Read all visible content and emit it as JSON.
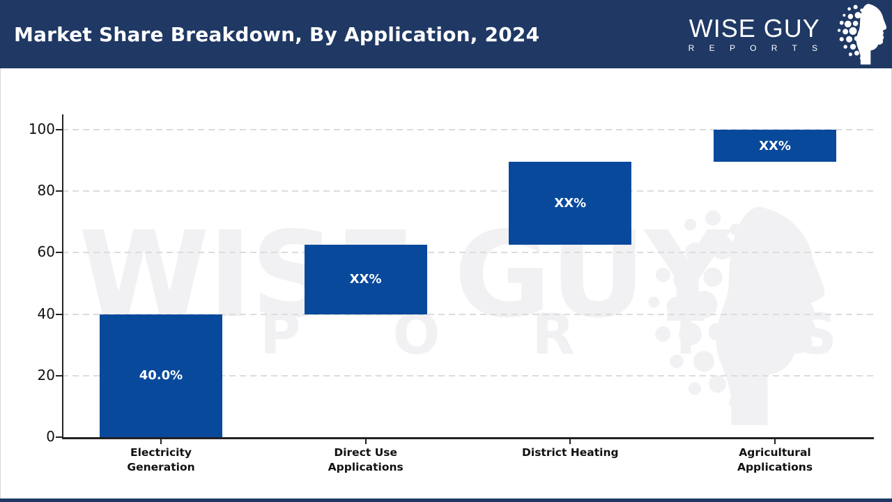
{
  "header": {
    "title": "Market Share Breakdown, By Application, 2024",
    "logo": {
      "line1": "WISE GUY",
      "line2": "R E P O R T S"
    }
  },
  "watermark": {
    "line1": "WISE GUY",
    "line2": "P O R T S"
  },
  "colors": {
    "header_bg": "#1f3864",
    "bar": "#08499c",
    "axis": "#222222",
    "grid": "#dcdcdc",
    "watermark": "#f1f1f3"
  },
  "chart_data": {
    "type": "bar",
    "subtype": "waterfall",
    "title": "Market Share Breakdown, By Application, 2024",
    "xlabel": "",
    "ylabel": "",
    "categories": [
      [
        "Electricity",
        "Generation"
      ],
      [
        "Direct Use",
        "Applications"
      ],
      [
        "District Heating"
      ],
      [
        "Agricultural",
        "Applications"
      ]
    ],
    "segments": [
      {
        "start": 0,
        "end": 40,
        "label": "40.0%"
      },
      {
        "start": 40,
        "end": 62.5,
        "label": "XX%"
      },
      {
        "start": 62.5,
        "end": 89.5,
        "label": "XX%"
      },
      {
        "start": 89.5,
        "end": 100,
        "label": "XX%"
      }
    ],
    "yticks": [
      0,
      20,
      40,
      60,
      80,
      100
    ],
    "ylim": [
      0,
      105
    ],
    "grid": true,
    "grid_style": "dashed",
    "legend": false,
    "bar_value_labels_inside": true
  }
}
